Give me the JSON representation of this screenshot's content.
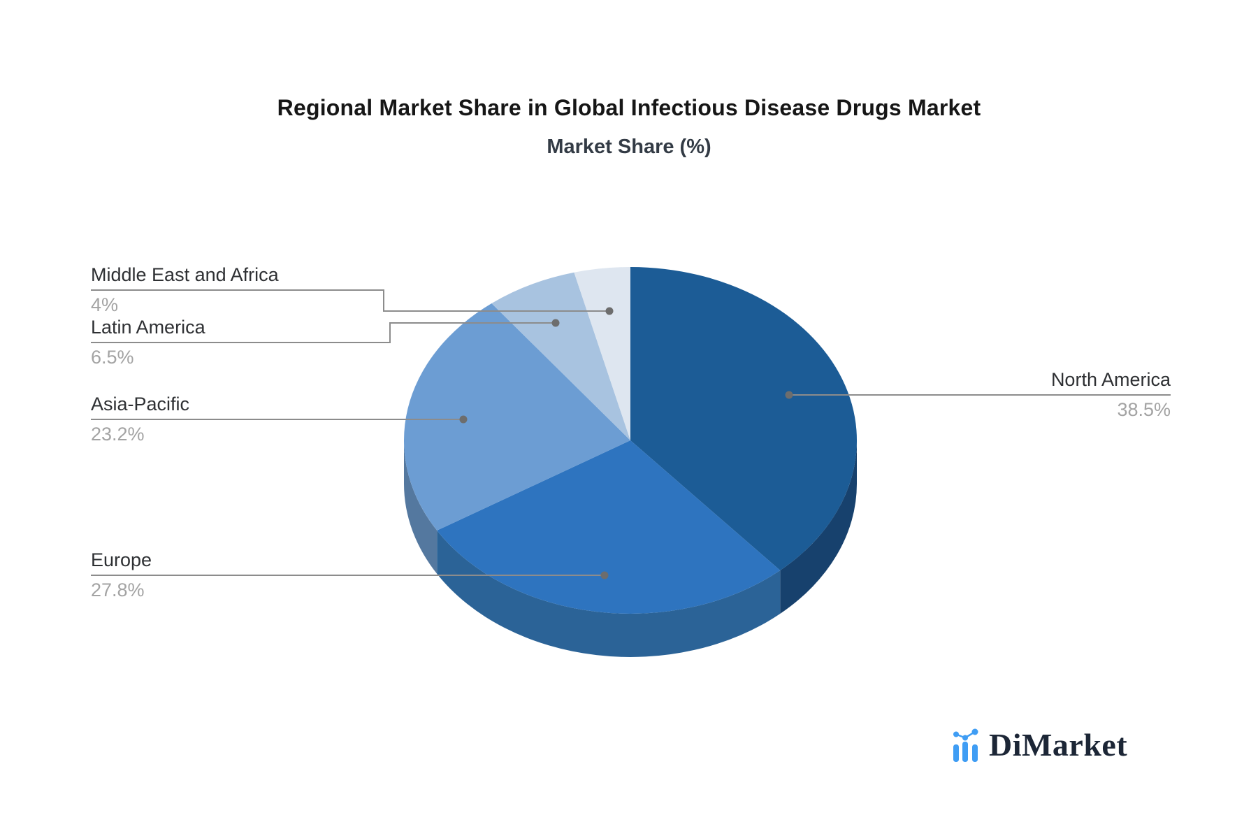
{
  "chart_data": {
    "type": "pie",
    "style": "3d-pie",
    "title": "Regional Market Share in Global Infectious Disease Drugs Market",
    "subtitle": "Market Share (%)",
    "unit": "%",
    "legend_position": "none",
    "label_style": "leader-lines with name and percent",
    "start_angle": "12-o'clock, clockwise",
    "slices": [
      {
        "label": "North America",
        "value": 38.5,
        "display": "38.5%",
        "color": "#1c5c96",
        "side_color": "#17416d"
      },
      {
        "label": "Europe",
        "value": 27.8,
        "display": "27.8%",
        "color": "#2e74bf",
        "side_color": "#2b6397"
      },
      {
        "label": "Asia-Pacific",
        "value": 23.2,
        "display": "23.2%",
        "color": "#6c9dd3",
        "side_color": "#54789f"
      },
      {
        "label": "Latin America",
        "value": 6.5,
        "display": "6.5%",
        "color": "#a8c3e0",
        "side_color": "#8aa6c4"
      },
      {
        "label": "Middle East and Africa",
        "value": 4,
        "display": "4%",
        "color": "#dee6f0",
        "side_color": "#b9c4d2"
      }
    ],
    "connector_color": "#8c8c8c",
    "connector_dot_color": "#6d6d6d"
  },
  "logo": {
    "text": "DiMarket",
    "icon": "bar-chart-with-trend-dots",
    "accent_color": "#3f9df4",
    "text_color": "#1c2636"
  }
}
